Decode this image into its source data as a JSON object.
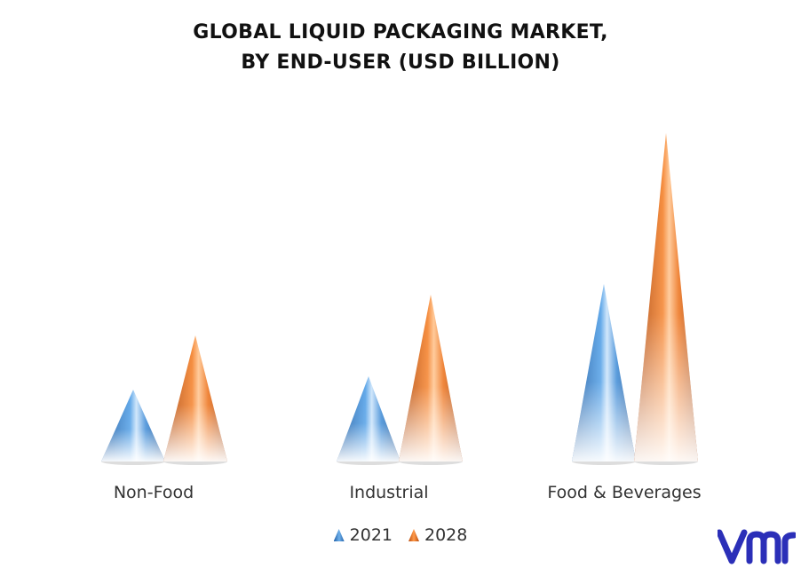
{
  "title": {
    "line1": "GLOBAL LIQUID PACKAGING MARKET,",
    "line2": "BY END-USER (USD BILLION)"
  },
  "chart_data": {
    "type": "bar",
    "shape": "cone",
    "categories": [
      "Non-Food",
      "Industrial",
      "Food & Beverages"
    ],
    "series": [
      {
        "name": "2021",
        "values": [
          81,
          96,
          200
        ],
        "color": "#3a86d4"
      },
      {
        "name": "2028",
        "values": [
          142,
          188,
          370
        ],
        "color": "#f07a2a"
      }
    ],
    "ylim": [
      0,
      380
    ],
    "y_axis_visible": false,
    "grid": false,
    "legend": "bottom-center",
    "title": "GLOBAL LIQUID PACKAGING MARKET, BY END-USER (USD BILLION)"
  },
  "legend": {
    "items": [
      "2021",
      "2028"
    ]
  },
  "logo": {
    "icon": "vmr-logo",
    "color": "#2b2fb8"
  }
}
